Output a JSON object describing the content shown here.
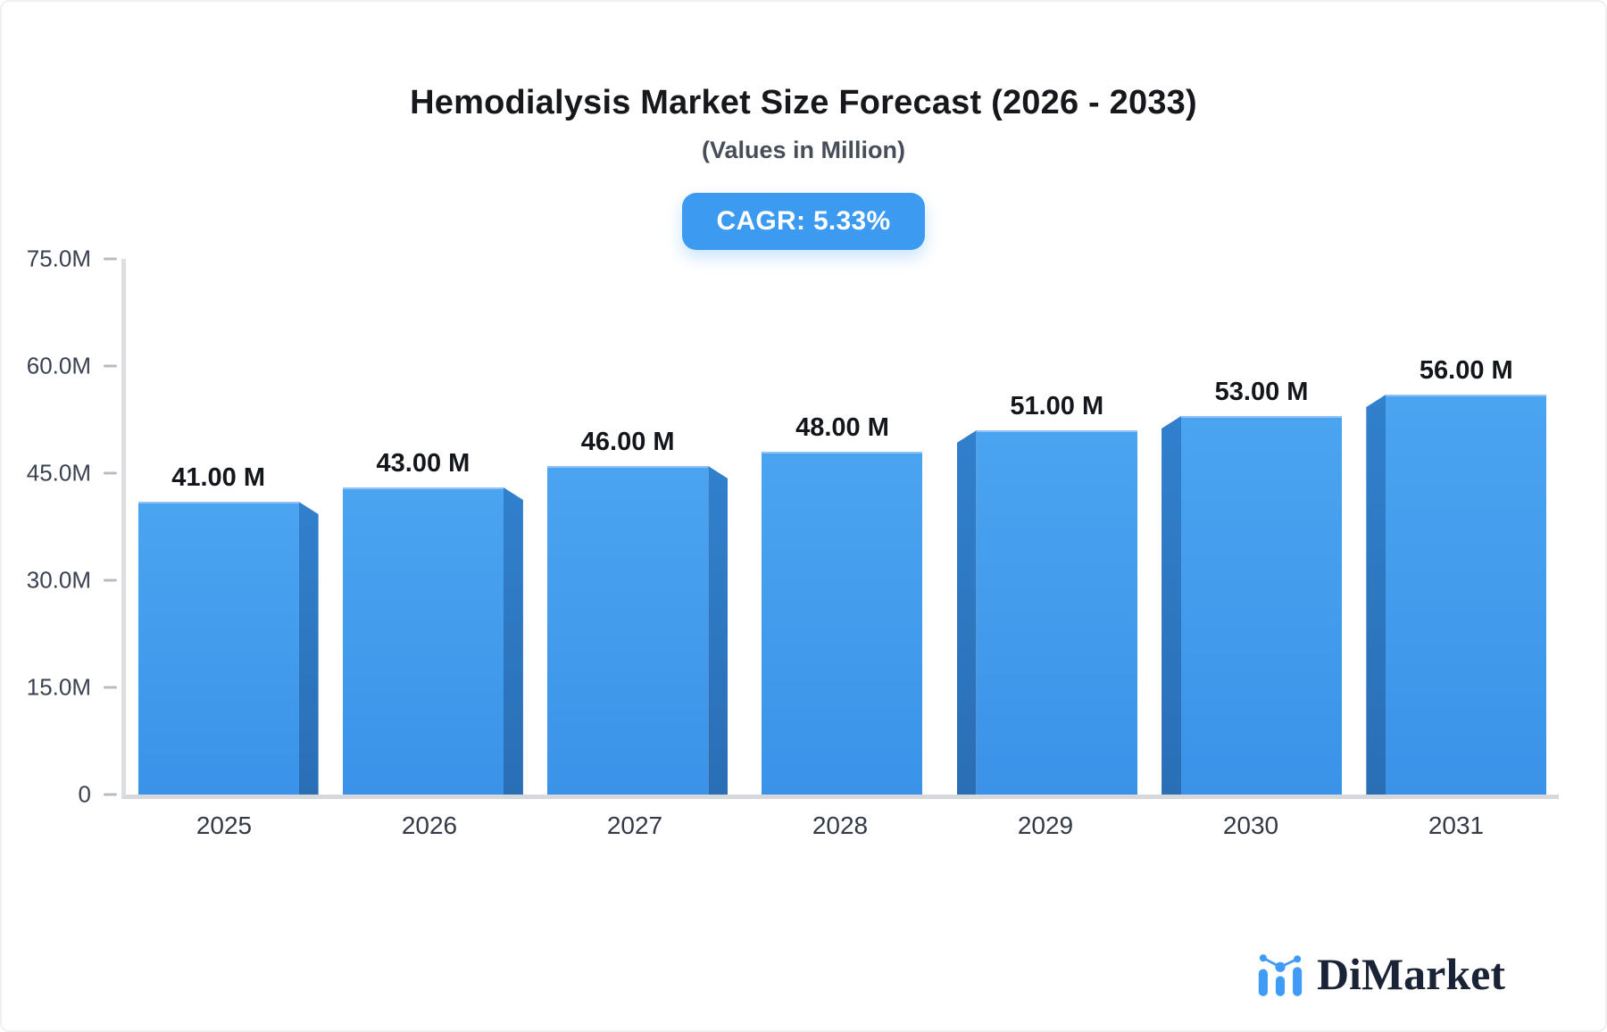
{
  "header": {
    "title": "Hemodialysis Market Size Forecast (2026 - 2033)",
    "subtitle": "(Values in Million)",
    "cagr_badge": "CAGR: 5.33%"
  },
  "chart_data": {
    "type": "bar",
    "style": "3d-perspective-bars",
    "title": "Hemodialysis Market Size Forecast (2026 - 2033)",
    "subtitle": "(Values in Million)",
    "unit": "Million",
    "cagr": "5.33%",
    "categories": [
      "2025",
      "2026",
      "2027",
      "2028",
      "2029",
      "2030",
      "2031"
    ],
    "values": [
      41,
      43,
      46,
      48,
      51,
      53,
      56
    ],
    "value_labels": [
      "41.00 M",
      "43.00 M",
      "46.00 M",
      "48.00 M",
      "51.00 M",
      "53.00 M",
      "56.00 M"
    ],
    "ylim": [
      0,
      75
    ],
    "yticks": [
      {
        "value": 0,
        "label": "0"
      },
      {
        "value": 15,
        "label": "15.0M"
      },
      {
        "value": 30,
        "label": "30.0M"
      },
      {
        "value": 45,
        "label": "45.0M"
      },
      {
        "value": 60,
        "label": "60.0M"
      },
      {
        "value": 75,
        "label": "75.0M"
      }
    ],
    "grid": false,
    "legend": false
  },
  "colors": {
    "bar_face_top": "#4ba4f0",
    "bar_face_bottom": "#3b93e9",
    "bar_side": "#2e78c2",
    "badge_bg": "#3c9bf0",
    "axis_line": "#d9dbdf",
    "tick_mark": "#b9bcc2",
    "title_text": "#16181c",
    "subtitle_text": "#474e58",
    "value_text": "#13161a",
    "axis_text": "#3a4150",
    "logo_navy": "#1b2337",
    "logo_blue": "#3f9bf5"
  },
  "logo": {
    "text": "DiMarket",
    "icon": "dimarket-chart-logo-icon"
  }
}
